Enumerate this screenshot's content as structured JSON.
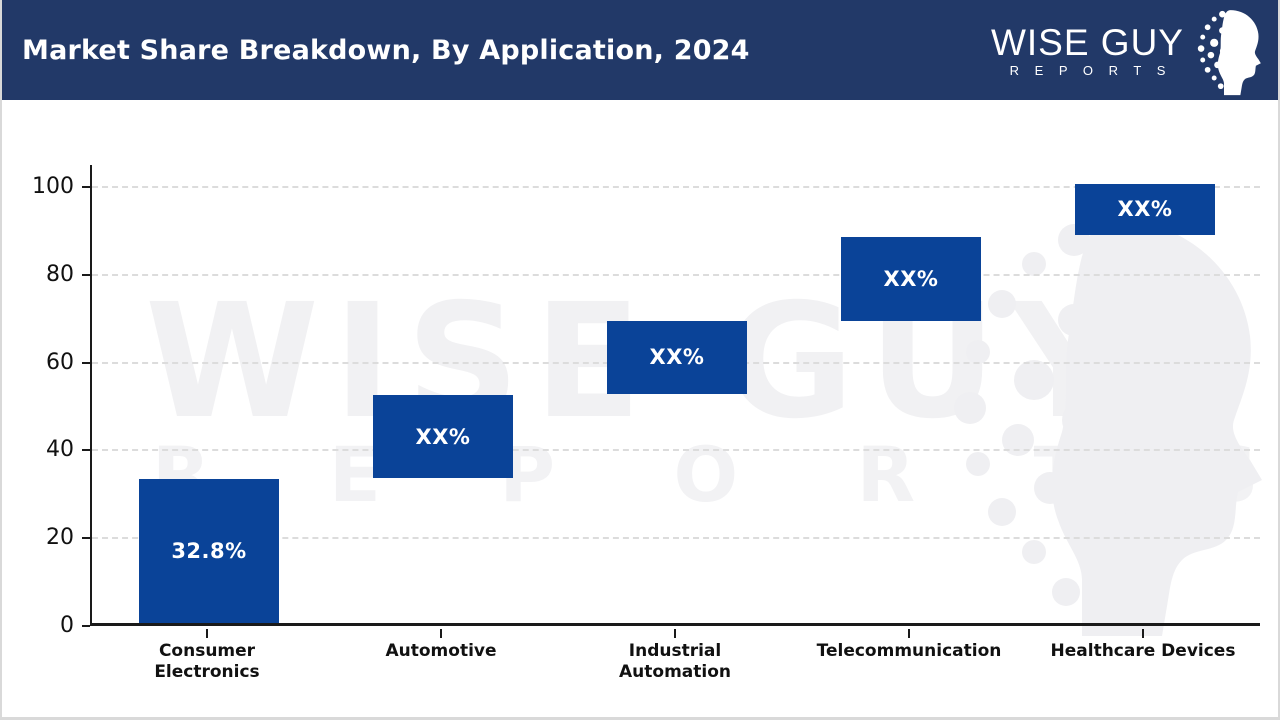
{
  "header": {
    "title": "Market Share Breakdown, By Application, 2024",
    "bg_color": "#223968",
    "logo": {
      "line1": "WISE GUY",
      "line2": "R E P O R T S"
    }
  },
  "watermark": {
    "line1": "WISE GUY",
    "line2": "R E P O R T S"
  },
  "chart_data": {
    "type": "bar",
    "variant": "waterfall",
    "title": "Market Share Breakdown, By Application, 2024",
    "categories": [
      "Consumer Electronics",
      "Automotive",
      "Industrial Automation",
      "Telecommunication",
      "Healthcare Devices"
    ],
    "x_tick_labels": [
      "Consumer\nElectronics",
      "Automotive",
      "Industrial\nAutomation",
      "Telecommunication",
      "Healthcare Devices"
    ],
    "segments": [
      {
        "category": "Consumer Electronics",
        "start": 0,
        "end": 32.8,
        "label": "32.8%"
      },
      {
        "category": "Automotive",
        "start": 33.0,
        "end": 51.9,
        "label": "XX%"
      },
      {
        "category": "Industrial Automation",
        "start": 52.2,
        "end": 68.8,
        "label": "XX%"
      },
      {
        "category": "Telecommunication",
        "start": 68.8,
        "end": 87.9,
        "label": "XX%"
      },
      {
        "category": "Healthcare Devices",
        "start": 88.4,
        "end": 100.0,
        "label": "XX%"
      }
    ],
    "y_ticks": [
      0,
      20,
      40,
      60,
      80,
      100
    ],
    "ylim": [
      0,
      105
    ],
    "xlabel": "",
    "ylabel": "",
    "legend": "none",
    "grid": "horizontal-dashed",
    "colors": {
      "bar": "#0a4398",
      "bar_label_text": "#ffffff",
      "grid_line": "#dcdcdc",
      "axis_line": "#1a1a1a",
      "tick_label": "#111111",
      "header_bg": "#223968",
      "watermark": "#f1f1f3"
    }
  }
}
